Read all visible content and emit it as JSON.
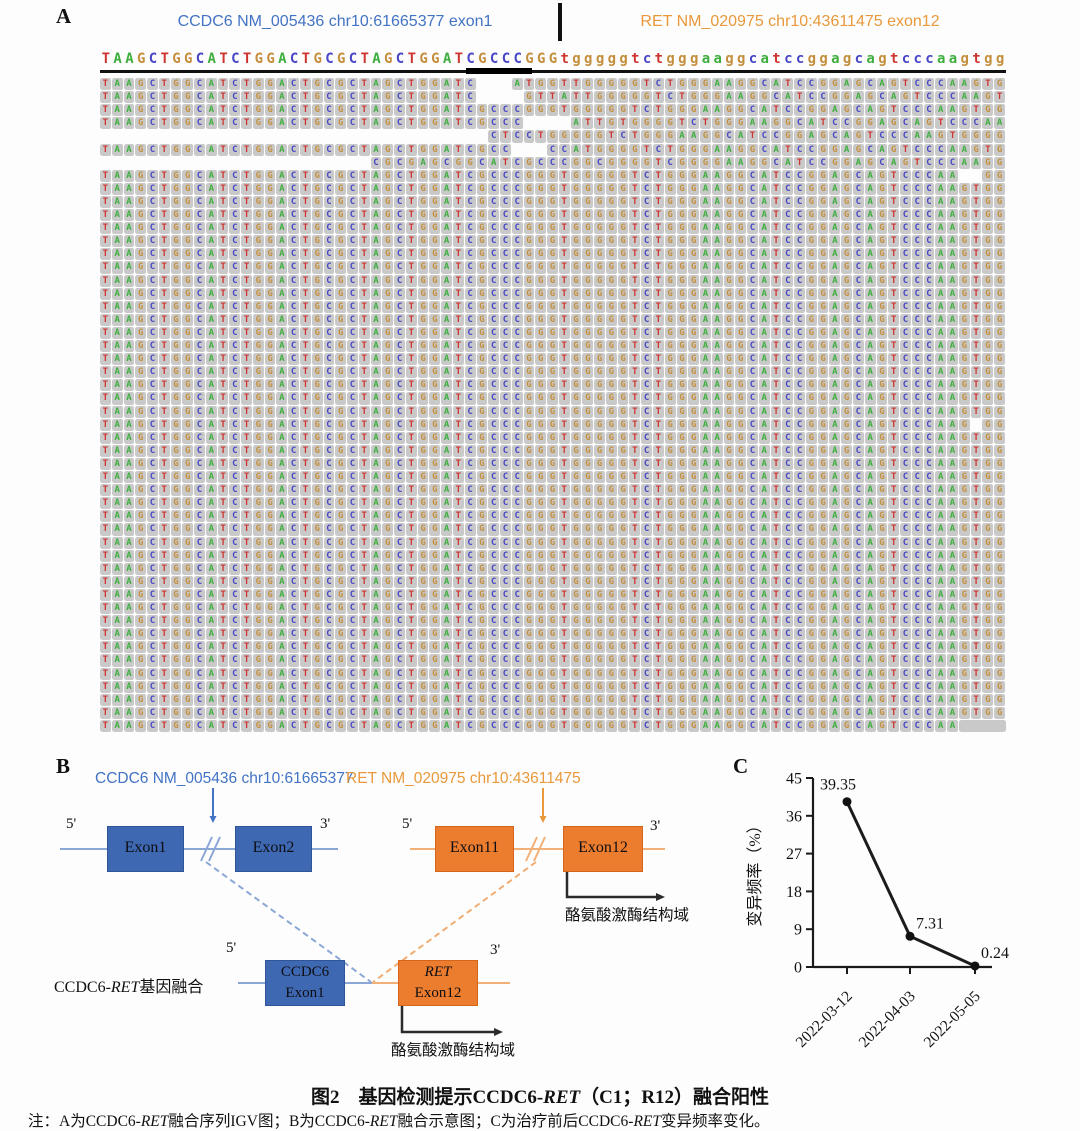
{
  "panel_a": {
    "label": "A",
    "gene_left_label": "CCDC6 NM_005436 chr10:61665377 exon1",
    "gene_right_label": "RET NM_020975 chr10:43611475 exon12",
    "consensus": "TAAGCTGGCATCTGGACTGCGCTAGCTGGATCGCCCGGGtgggggtctgggaaggcatccggagcagtcccaagtgg",
    "base_colors": {
      "A": "#3fae3f",
      "C": "#4646c6",
      "G": "#c48f3c",
      "T": "#cf3530"
    },
    "read_bg": "#c9c9c9",
    "rows": {
      "count": 50,
      "default": [
        [
          0,
          77
        ]
      ],
      "overrides": {
        "0": [
          [
            0,
            32
          ],
          [
            35,
            77,
            "ATGGTTGGGGGTCTGGGAAGGCATCCGGAGCAGTCCCAAGTGG"
          ]
        ],
        "1": [
          [
            0,
            32
          ],
          [
            36,
            77,
            "GTTATTGGGGGTCTGGGAAGGCATCCGGAGCAGTCCCAAGTG"
          ]
        ],
        "3": [
          [
            0,
            36
          ],
          [
            40,
            77,
            "ATTGTGGGGTCTGGGAAGGCATCCGGAGCAGTCCCAAGTGG"
          ]
        ],
        "4": [
          [
            33,
            77,
            "CTCCTGGGGGTCTGGGAAGGCATCCGGAGCAGTCCCAAGTGG"
          ]
        ],
        "5": [
          [
            0,
            35
          ],
          [
            38,
            77,
            "CCATGGGGTCTGGGAAGGCATCCGGAGCAGTCCCAAGTGG"
          ]
        ],
        "6": [
          [
            23,
            77,
            "CGCGAGCGGCATCGCCCGGCGGGGTCGGGGAAGGCATCCGGAGCAGTCCCAAG"
          ]
        ],
        "7": [
          [
            0,
            73
          ],
          [
            75,
            77
          ]
        ],
        "26": [
          [
            0,
            74
          ],
          [
            75,
            77
          ]
        ],
        "49": [
          [
            0,
            73
          ],
          [
            73,
            77,
            "",
            1
          ]
        ]
      }
    }
  },
  "panel_b": {
    "label": "B",
    "ccdc6_label": "CCDC6 NM_005436 chr10:61665377",
    "ret_label": "RET NM_020975 chr10:43611475",
    "five_prime": "5'",
    "three_prime": "3'",
    "exon1": "Exon1",
    "exon2": "Exon2",
    "exon11": "Exon11",
    "exon12": "Exon12",
    "fusion_ccdc6_gene": "CCDC6",
    "fusion_ccdc6_exon": "Exon1",
    "fusion_ret_gene": "RET",
    "fusion_ret_exon": "Exon12",
    "kinase_domain_label": "酪氨酸激酶结构域",
    "fusion_track_label": {
      "parts": [
        {
          "t": "CCDC6-"
        },
        {
          "t": "RET",
          "i": 1
        },
        {
          "t": "基因融合"
        }
      ]
    },
    "colors": {
      "blue_text": "#4273c4",
      "orange_text": "#e9983a",
      "blue_box": "#3e68b2",
      "orange_box": "#ec7d2f",
      "blue_line": "#8aa7d6",
      "orange_line": "#f2b079"
    }
  },
  "panel_c": {
    "label": "C"
  },
  "chart_data": {
    "type": "line",
    "categories": [
      "2022-03-12",
      "2022-04-03",
      "2022-05-05"
    ],
    "values": [
      39.35,
      7.31,
      0.24
    ],
    "point_labels": [
      "39.35",
      "7.31",
      "0.24"
    ],
    "title": "",
    "xlabel": "",
    "ylabel": "变异频率（%）",
    "yticks": [
      0,
      9,
      18,
      27,
      36,
      45
    ],
    "ylim": [
      0,
      45
    ],
    "grid": false,
    "legend": "none",
    "line_color": "#1c1c1c",
    "marker_color": "#111111"
  },
  "caption": {
    "parts": [
      {
        "t": "图2　基因检测提示CCDC6-"
      },
      {
        "t": "RET",
        "i": 1
      },
      {
        "t": "（C1；R12）融合阳性"
      }
    ]
  },
  "note": {
    "parts": [
      {
        "t": "注：A为CCDC6-"
      },
      {
        "t": "RET",
        "i": 1
      },
      {
        "t": "融合序列IGV图；B为CCDC6-"
      },
      {
        "t": "RET",
        "i": 1
      },
      {
        "t": "融合示意图；C为治疗前后CCDC6-"
      },
      {
        "t": "RET",
        "i": 1
      },
      {
        "t": "变异频率变化。"
      }
    ]
  }
}
